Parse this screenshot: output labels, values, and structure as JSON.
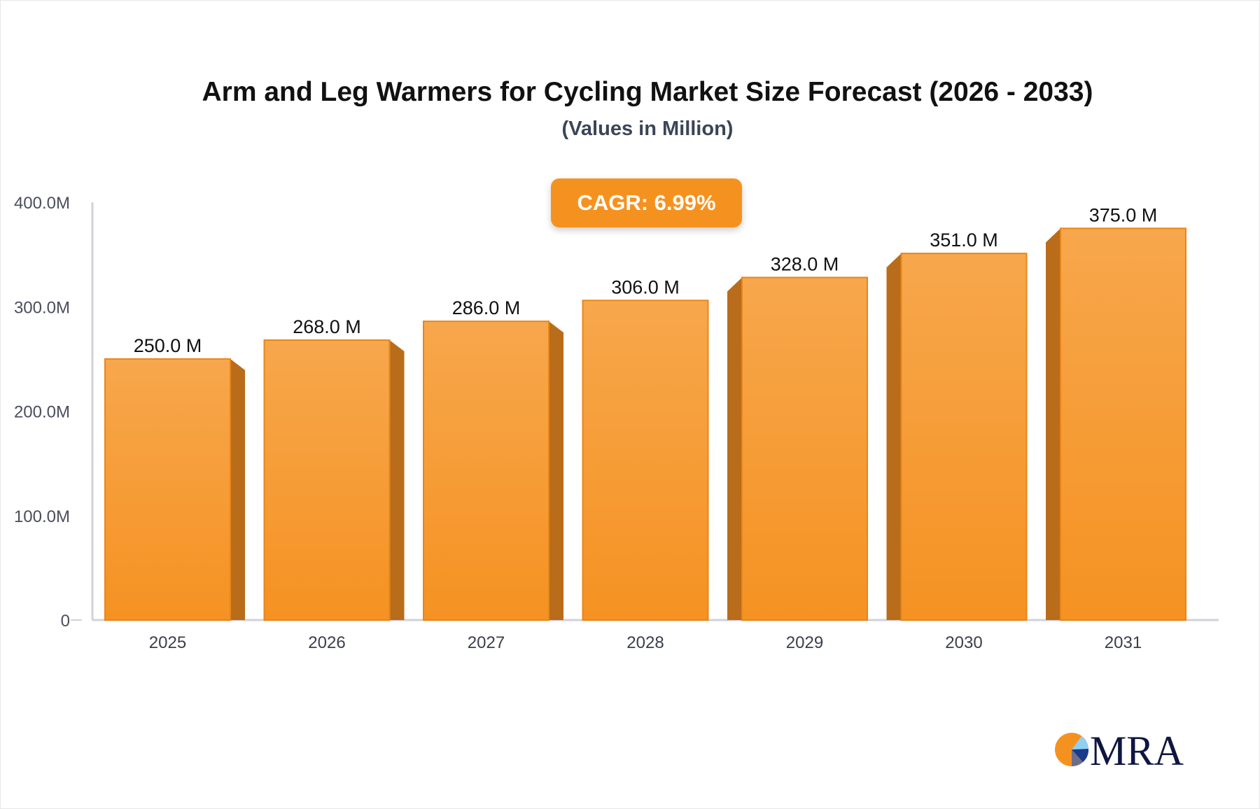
{
  "chart_data": {
    "type": "bar",
    "title": "Arm and Leg Warmers for Cycling Market Size Forecast (2026 - 2033)",
    "subtitle": "(Values in Million)",
    "annotation": "CAGR: 6.99%",
    "categories": [
      "2025",
      "2026",
      "2027",
      "2028",
      "2029",
      "2030",
      "2031"
    ],
    "values": [
      250.0,
      268.0,
      286.0,
      306.0,
      328.0,
      351.0,
      375.0
    ],
    "data_labels": [
      "250.0 M",
      "268.0 M",
      "286.0 M",
      "306.0 M",
      "328.0 M",
      "351.0 M",
      "375.0 M"
    ],
    "ylim": [
      0,
      400
    ],
    "yticks": [
      0,
      100,
      200,
      300,
      400
    ],
    "ytick_labels": [
      "0",
      "100.0M",
      "200.0M",
      "300.0M",
      "400.0M"
    ],
    "xlabel": "",
    "ylabel": "",
    "grid": false,
    "colors": {
      "bar": "#f5921f",
      "bar_side": "#b96c19",
      "axis": "#d0d2da"
    }
  },
  "logo": {
    "text": "MRA"
  }
}
